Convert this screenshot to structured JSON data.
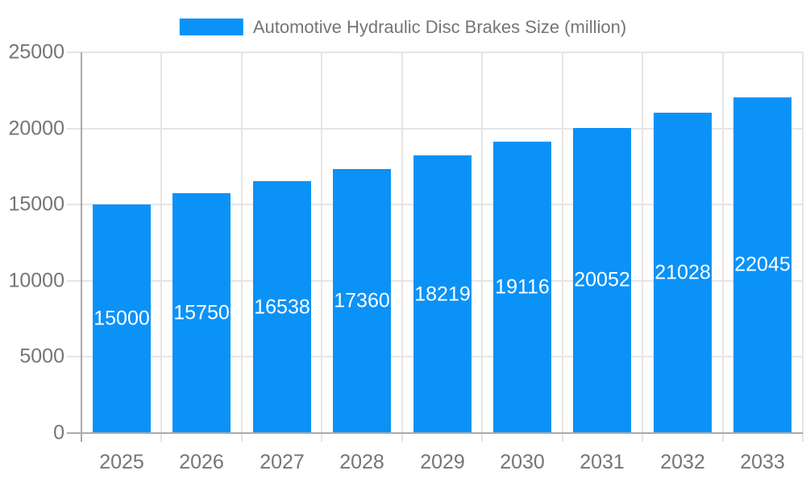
{
  "chart_data": {
    "type": "bar",
    "title": "Automotive Hydraulic Disc Brakes Size (million)",
    "legend": {
      "position": "top",
      "entries": [
        "Automotive Hydraulic Disc Brakes Size (million)"
      ]
    },
    "categories": [
      "2025",
      "2026",
      "2027",
      "2028",
      "2029",
      "2030",
      "2031",
      "2032",
      "2033"
    ],
    "series": [
      {
        "name": "Automotive Hydraulic Disc Brakes Size (million)",
        "values": [
          15000,
          15750,
          16538,
          17360,
          18219,
          19116,
          20052,
          21028,
          22045
        ]
      }
    ],
    "value_labels": {
      "visible": true,
      "placement": "inside-bar-center",
      "color": "#FFFFFF"
    },
    "xlabel": "",
    "ylabel": "",
    "ylim": [
      0,
      25000
    ],
    "yticks": [
      0,
      5000,
      10000,
      15000,
      20000,
      25000
    ],
    "grid": {
      "horizontal": true,
      "vertical": true
    },
    "colors": {
      "bar": "#0B92F7",
      "grid": "#E5E5E5",
      "axis_line": "#ABABAB",
      "axis_text": "#757575",
      "legend_text": "#757575",
      "background": "#FFFFFF"
    }
  }
}
